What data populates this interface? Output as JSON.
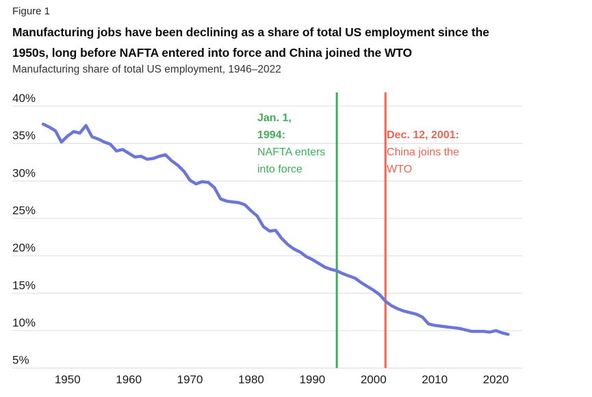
{
  "figure_label": "Figure 1",
  "title": {
    "full": "Manufacturing jobs have been declining as a share of total US employment since the 1950s, long before NAFTA entered into force and China joined the WTO",
    "lines": [
      "Manufacturing jobs have been declining as a share of total US employment since the",
      "1950s, long before NAFTA entered into force and China joined the WTO"
    ]
  },
  "subtitle": "Manufacturing share of total US employment, 1946–2022",
  "chart_data": {
    "type": "line",
    "title": "Manufacturing jobs have been declining as a share of total US employment since the 1950s, long before NAFTA entered into force and China joined the WTO",
    "subtitle": "Manufacturing share of total US employment, 1946–2022",
    "x": [
      1946,
      1947,
      1948,
      1949,
      1950,
      1951,
      1952,
      1953,
      1954,
      1955,
      1956,
      1957,
      1958,
      1959,
      1960,
      1961,
      1962,
      1963,
      1964,
      1965,
      1966,
      1967,
      1968,
      1969,
      1970,
      1971,
      1972,
      1973,
      1974,
      1975,
      1976,
      1977,
      1978,
      1979,
      1980,
      1981,
      1982,
      1983,
      1984,
      1985,
      1986,
      1987,
      1988,
      1989,
      1990,
      1991,
      1992,
      1993,
      1994,
      1995,
      1996,
      1997,
      1998,
      1999,
      2000,
      2001,
      2002,
      2003,
      2004,
      2005,
      2006,
      2007,
      2008,
      2009,
      2010,
      2011,
      2012,
      2013,
      2014,
      2015,
      2016,
      2017,
      2018,
      2019,
      2020,
      2021,
      2022
    ],
    "series": [
      {
        "name": "Manufacturing share of total US employment",
        "values": [
          37.6,
          37.2,
          36.7,
          35.2,
          36.0,
          36.6,
          36.4,
          37.4,
          35.9,
          35.6,
          35.2,
          34.9,
          34.0,
          34.2,
          33.7,
          33.2,
          33.3,
          32.9,
          33.0,
          33.3,
          33.5,
          32.7,
          32.1,
          31.3,
          30.1,
          29.6,
          29.9,
          29.8,
          29.1,
          27.6,
          27.3,
          27.2,
          27.1,
          26.8,
          26.0,
          25.3,
          23.9,
          23.3,
          23.4,
          22.3,
          21.5,
          20.9,
          20.5,
          19.9,
          19.5,
          19.0,
          18.5,
          18.2,
          18.0,
          17.6,
          17.3,
          17.0,
          16.4,
          15.9,
          15.4,
          14.8,
          13.9,
          13.3,
          12.9,
          12.6,
          12.4,
          12.2,
          11.8,
          10.9,
          10.7,
          10.6,
          10.5,
          10.4,
          10.3,
          10.1,
          9.9,
          9.9,
          9.9,
          9.8,
          10.0,
          9.7,
          9.5
        ]
      }
    ],
    "line_color": "#6b77d8",
    "xlabel": "",
    "ylabel": "",
    "ylim": [
      5,
      40
    ],
    "yticks": [
      40,
      35,
      30,
      25,
      20,
      15,
      10,
      5
    ],
    "ytick_labels": [
      "40%",
      "35%",
      "30%",
      "25%",
      "20%",
      "15%",
      "10%",
      "5%"
    ],
    "xticks": [
      1950,
      1960,
      1970,
      1980,
      1990,
      2000,
      2010,
      2020
    ],
    "xtick_labels": [
      "1950",
      "1960",
      "1970",
      "1980",
      "1990",
      "2000",
      "2010",
      "2020"
    ],
    "grid": "horizontal",
    "legend": "none",
    "annotations": [
      {
        "x": 1994.0,
        "color": "#3eae5a",
        "bold_lines": [
          "Jan. 1,",
          "1994:"
        ],
        "lines": [
          "NAFTA enters",
          "into force"
        ],
        "event": "NAFTA enters into force"
      },
      {
        "x": 2001.95,
        "color": "#ee6351",
        "bold_lines": [
          "Dec. 12, 2001:"
        ],
        "lines": [
          "China joins the",
          "WTO"
        ],
        "event": "China joins the WTO"
      }
    ]
  }
}
